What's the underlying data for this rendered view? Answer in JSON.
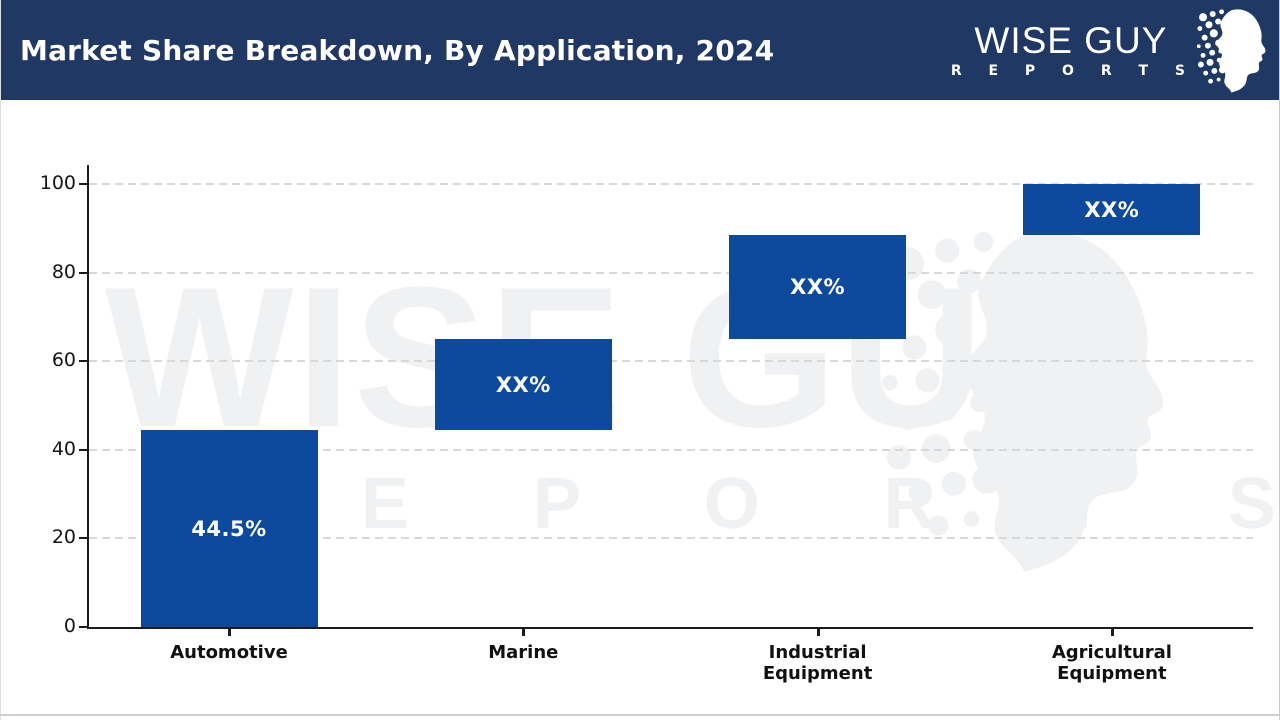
{
  "header": {
    "title": "Market Share Breakdown, By Application, 2024",
    "logo": {
      "line1": "WISE GUY",
      "line2": "R E P O R T S",
      "head_icon": "dotted-head-profile"
    }
  },
  "watermark": {
    "line1": "WISE GUY",
    "line2": "R E P O R T S",
    "head_icon": "dotted-head-profile"
  },
  "colors": {
    "header_bg": "#1f3864",
    "bar": "#0d4a9e",
    "bar_label": "#ffffff",
    "grid": "#d8d8d8",
    "axis": "#1b1b1b",
    "watermark": "#f0f1f3",
    "page_border": "#c9cdd3"
  },
  "chart_data": {
    "type": "bar",
    "subtype": "waterfall (floating cumulative segments)",
    "title": "Market Share Breakdown, By Application, 2024",
    "categories": [
      "Automotive",
      "Marine",
      "Industrial Equipment",
      "Agricultural Equipment"
    ],
    "x_tick_labels": [
      "Automotive",
      "Marine",
      "Industrial\nEquipment",
      "Agricultural\nEquipment"
    ],
    "segments": [
      {
        "category": "Automotive",
        "start": 0,
        "end": 44.5,
        "value": 44.5,
        "label": "44.5%"
      },
      {
        "category": "Marine",
        "start": 44.5,
        "end": 65,
        "value": 20.5,
        "label": "XX%"
      },
      {
        "category": "Industrial Equipment",
        "start": 65,
        "end": 88.5,
        "value": 23.5,
        "label": "XX%"
      },
      {
        "category": "Agricultural Equipment",
        "start": 88.5,
        "end": 100,
        "value": 11.5,
        "label": "XX%"
      }
    ],
    "yticks": [
      0,
      20,
      40,
      60,
      80,
      100
    ],
    "ylim": [
      0,
      104.4
    ],
    "xlabel": "",
    "ylabel": "",
    "grid": {
      "horizontal": true,
      "style": "dashed",
      "color": "#d8d8d8"
    },
    "legend": "none",
    "bar_color": "#0d4a9e"
  }
}
